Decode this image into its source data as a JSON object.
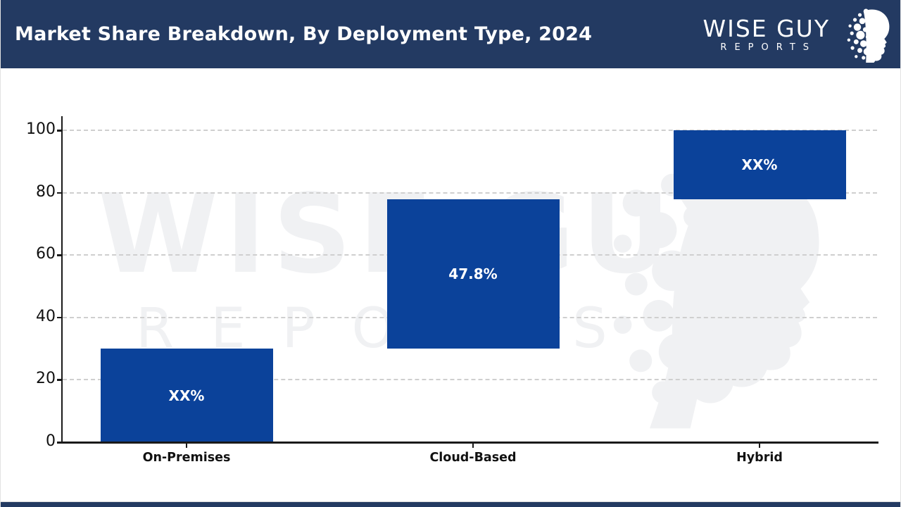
{
  "header": {
    "title": "Market Share Breakdown, By Deployment Type, 2024",
    "logo": {
      "brand": "WISE GUY",
      "sub": "REPORTS"
    }
  },
  "watermark": {
    "brand": "WISE GUY",
    "sub": "REPORTS"
  },
  "chart_data": {
    "type": "bar",
    "subtype": "floating-waterfall",
    "title": "Market Share Breakdown, By Deployment Type, 2024",
    "categories": [
      "On-Premises",
      "Cloud-Based",
      "Hybrid"
    ],
    "bars": [
      {
        "category": "On-Premises",
        "start": 0,
        "end": 30,
        "value": 30,
        "label": "XX%"
      },
      {
        "category": "Cloud-Based",
        "start": 30,
        "end": 77.8,
        "value": 47.8,
        "label": "47.8%"
      },
      {
        "category": "Hybrid",
        "start": 77.8,
        "end": 100,
        "value": 22.2,
        "label": "XX%"
      }
    ],
    "xlabel": "",
    "ylabel": "",
    "ylim": [
      0,
      100
    ],
    "yticks": [
      0,
      20,
      40,
      60,
      80,
      100
    ],
    "grid": "horizontal-dashed",
    "legend": "none"
  },
  "colors": {
    "header_bg": "#233a62",
    "footer_bg": "#233a62",
    "bar": "#0b429a",
    "gridline": "#cfcfcf",
    "axis": "#1a1a1a",
    "watermark": "#f0f1f3",
    "bar_label": "#ffffff",
    "title_text": "#ffffff"
  }
}
